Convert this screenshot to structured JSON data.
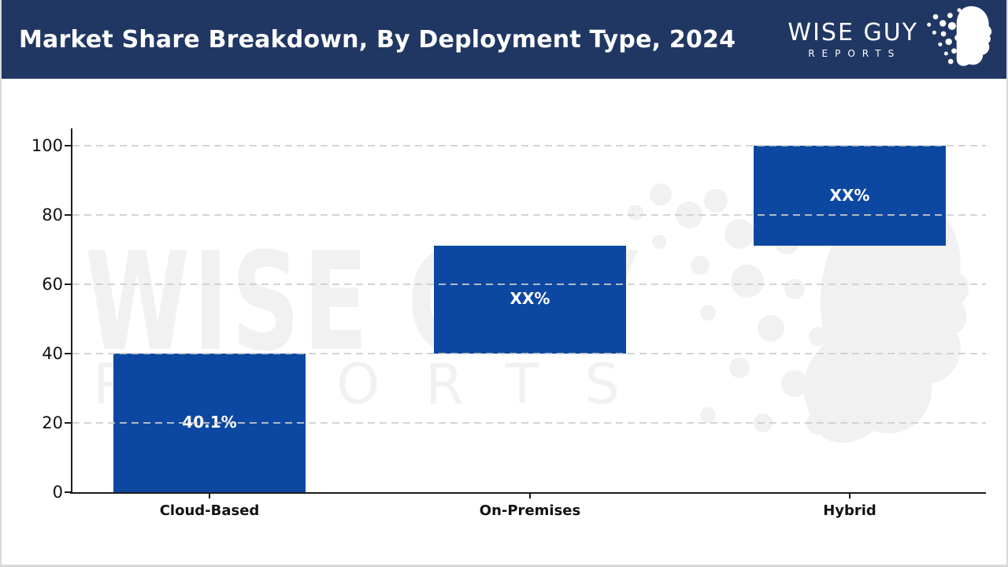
{
  "header": {
    "title": "Market Share Breakdown, By Deployment Type, 2024",
    "logo": {
      "line1": "WISE GUY",
      "line2": "REPORTS"
    }
  },
  "watermark": {
    "line1": "WISE GUY",
    "line2": "REPORTS"
  },
  "chart_data": {
    "type": "bar",
    "variant": "waterfall-breakdown",
    "title": "Market Share Breakdown, By Deployment Type, 2024",
    "categories": [
      "Cloud-Based",
      "On-Premises",
      "Hybrid"
    ],
    "segments": [
      {
        "category": "Cloud-Based",
        "from": 0,
        "to": 40.1,
        "label": "40.1%"
      },
      {
        "category": "On-Premises",
        "from": 40.1,
        "to": 71.1,
        "label": "XX%"
      },
      {
        "category": "Hybrid",
        "from": 71.1,
        "to": 100,
        "label": "XX%"
      }
    ],
    "xlabel": "",
    "ylabel": "",
    "ylim": [
      0,
      100
    ],
    "yticks": [
      0,
      20,
      40,
      60,
      80,
      100
    ],
    "grid": "horizontal-dashed",
    "legend": "none",
    "colors": {
      "bar": "#0c48a1",
      "bar_label": "#ffffff",
      "header_bg": "#213763",
      "axis": "#1c1c1c",
      "gridline": "#d5d5d5",
      "watermark": "#f1f1f2"
    }
  }
}
